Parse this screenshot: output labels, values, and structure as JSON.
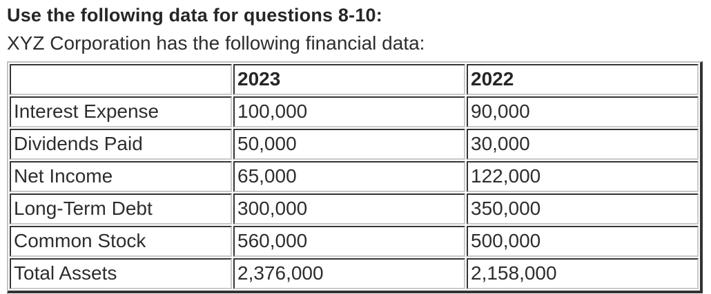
{
  "header": {
    "instruction": "Use the following data for questions 8-10:",
    "subtitle": "XYZ Corporation has the following financial data:"
  },
  "table": {
    "columns": [
      "",
      "2023",
      "2022"
    ],
    "rows": [
      [
        "Interest Expense",
        "100,000",
        "90,000"
      ],
      [
        "Dividends Paid",
        "50,000",
        "30,000"
      ],
      [
        "Net Income",
        "65,000",
        "122,000"
      ],
      [
        "Long-Term Debt",
        "300,000",
        "350,000"
      ],
      [
        "Common Stock",
        "560,000",
        "500,000"
      ],
      [
        "Total Assets",
        "2,376,000",
        "2,158,000"
      ]
    ]
  },
  "colors": {
    "text": "#2d2d2d",
    "cell_border_dark": "#333333",
    "cell_border_light": "#c9c9c9",
    "table_frame_light": "#c2c2c2",
    "background": "#ffffff"
  }
}
